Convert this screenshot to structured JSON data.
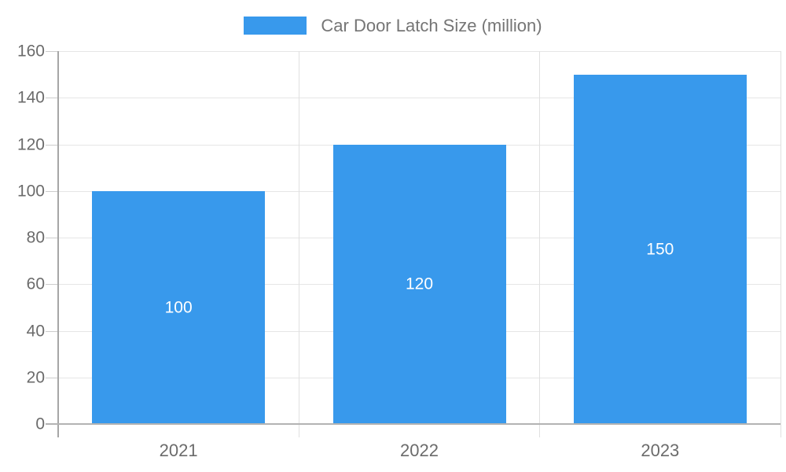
{
  "chart_data": {
    "type": "bar",
    "title": "Car Door Latch Size (million)",
    "categories": [
      "2021",
      "2022",
      "2023"
    ],
    "series": [
      {
        "name": "Car Door Latch Size (million)",
        "values": [
          100,
          120,
          150
        ]
      }
    ],
    "data_labels": [
      100,
      120,
      150
    ],
    "data_label_position": "inside-center",
    "xlabel": "",
    "ylabel": "",
    "ylim": [
      0,
      160
    ],
    "ytick_step": 20,
    "yticks": [
      0,
      20,
      40,
      60,
      80,
      100,
      120,
      140,
      160
    ],
    "grid": true,
    "legend_position": "top-center"
  },
  "colors": {
    "bar_fill": "#3899EC",
    "bar_label_text": "#FFFFFF",
    "axis_line": "#A6A6A6",
    "zero_line": "#B3B3B3",
    "gridline": "#E6E6E6",
    "category_separator": "#E0E0E0",
    "tick_line": "#CCCCCC",
    "axis_label_text": "#6B6B6B",
    "legend_text": "#757575",
    "background": "#FFFFFF"
  }
}
